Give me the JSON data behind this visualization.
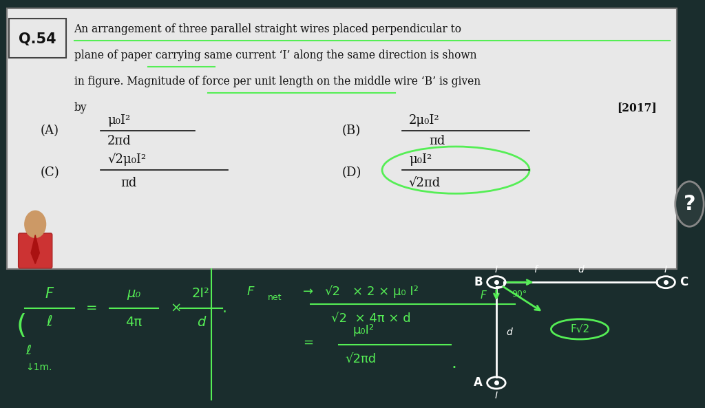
{
  "fig_width": 10.24,
  "fig_height": 5.93,
  "bg_dark": "#1a2d2d",
  "box_bg": "#e8e8e8",
  "box_border": "#555555",
  "green": "#55ee55",
  "white": "#ffffff",
  "black": "#111111",
  "question_label": "Q.54",
  "line1": "An arrangement of three parallel straight wires placed perpendicular to",
  "line2": "plane of paper carrying same current ‘I’ along the same direction is shown",
  "line3": "in figure. Magnitude of force per unit length on the middle wire ‘B’ is given",
  "line4": "by",
  "year": "[2017]",
  "optA_num": "μ₀I²",
  "optA_den": "2πd",
  "optB_num": "2μ₀I²",
  "optB_den": "πd",
  "optC_num": "√2μ₀I²",
  "optC_den": "πd",
  "optD_num": "μ₀I²",
  "optD_den": "√2πd"
}
